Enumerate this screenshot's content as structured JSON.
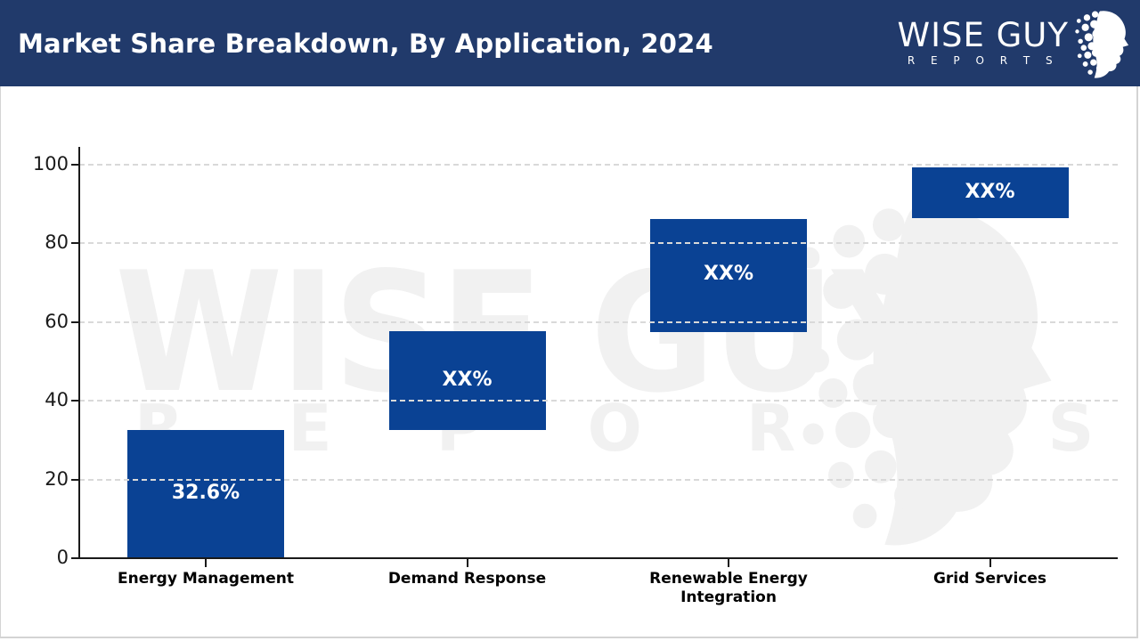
{
  "header": {
    "title": "Market Share Breakdown, By Application, 2024",
    "logo": {
      "wordmark": "WISE GUY",
      "subtext": "R E P O R T S",
      "face_icon": "dotted-head-profile"
    }
  },
  "watermark": {
    "wordmark": "WISE GUY",
    "subtext": "R E P O R T S",
    "face_icon": "dotted-head-profile"
  },
  "chart_data": {
    "type": "bar",
    "subtype": "floating-segment-waterfall",
    "title": "Market Share Breakdown, By Application, 2024",
    "categories": [
      "Energy Management",
      "Demand Response",
      "Renewable Energy Integration",
      "Grid Services"
    ],
    "segments": [
      {
        "category": "Energy Management",
        "start": 0,
        "end": 32.6,
        "label": "32.6%"
      },
      {
        "category": "Demand Response",
        "start": 32.6,
        "end": 57.6,
        "label": "XX%"
      },
      {
        "category": "Renewable Energy Integration",
        "start": 57.5,
        "end": 86.2,
        "label": "XX%"
      },
      {
        "category": "Grid Services",
        "start": 86.4,
        "end": 99.3,
        "label": "XX%"
      }
    ],
    "yticks": [
      0,
      20,
      40,
      60,
      80,
      100
    ],
    "ylim": [
      0,
      104.5
    ],
    "xlabel": "",
    "ylabel": "",
    "grid": "horizontal-dashed",
    "legend": "none",
    "bar_color": "#0a4294",
    "bar_label_color": "#ffffff"
  },
  "colors": {
    "header_bg": "#213a6b",
    "header_text": "#ffffff",
    "bar": "#0a4294",
    "grid": "#d9d9d9",
    "axis": "#1a1a1a",
    "tick_label": "#1a1a1a",
    "watermark": "#f1f1f1",
    "frame_border": "#d4d4d4",
    "background": "#ffffff"
  }
}
